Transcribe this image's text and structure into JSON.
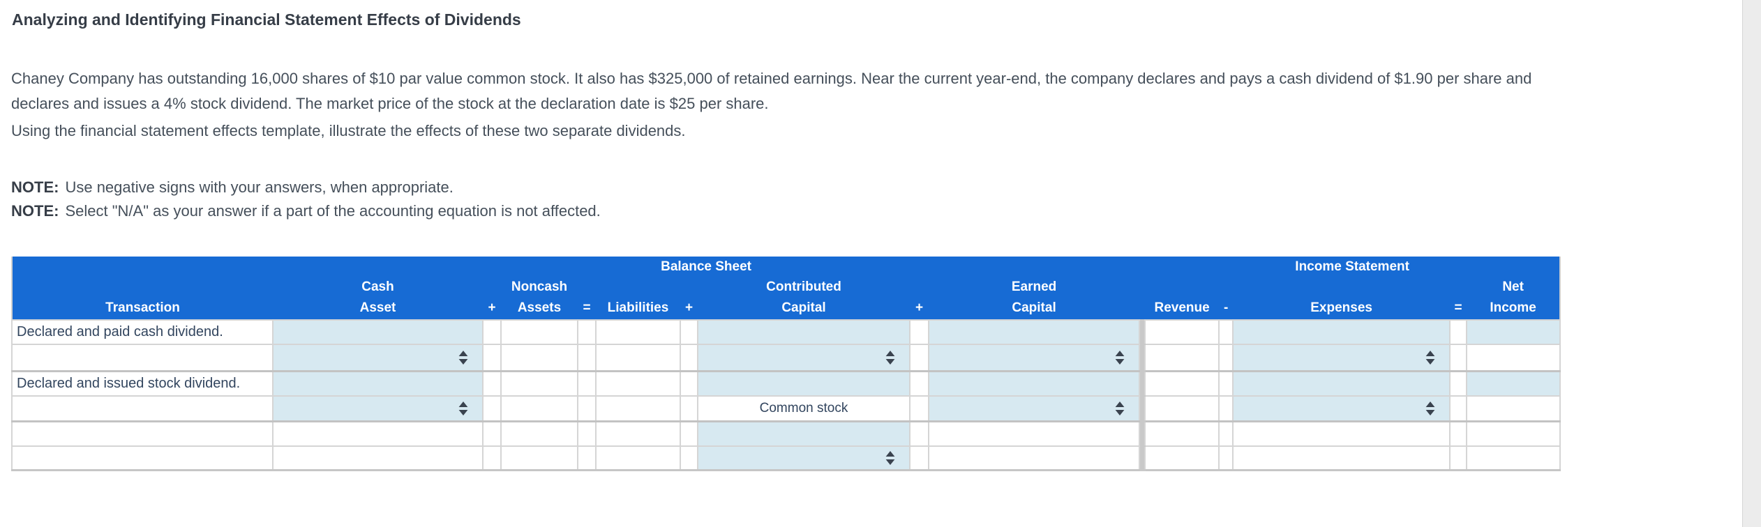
{
  "page": {
    "title": "Analyzing and Identifying Financial Statement Effects of Dividends",
    "intro_lines": [
      "Chaney Company has outstanding 16,000 shares of $10 par value common stock. It also has $325,000 of retained earnings. Near the current year-end, the company declares and pays a cash dividend of $1.90 per share and",
      "declares and issues a 4% stock dividend. The market price of the stock at the declaration date is $25 per share."
    ],
    "instruction": "Using the financial statement effects template, illustrate the effects of these two separate dividends.",
    "notes": [
      {
        "label": "NOTE:",
        "text": "Use negative signs with your answers, when appropriate."
      },
      {
        "label": "NOTE:",
        "text": "Select \"N/A\" as your answer if a part of the accounting equation is not affected."
      }
    ]
  },
  "table": {
    "group_headers": {
      "balance_sheet": "Balance Sheet",
      "income_statement": "Income Statement"
    },
    "columns": {
      "transaction": "Transaction",
      "cash_asset": [
        "Cash",
        "Asset"
      ],
      "op_plus_1": "+",
      "noncash_assets": [
        "Noncash",
        "Assets"
      ],
      "op_equals_1": "=",
      "liabilities": "Liabilities",
      "op_plus_2": "+",
      "contributed_capital": [
        "Contributed",
        "Capital"
      ],
      "op_plus_3": "+",
      "earned_capital": [
        "Earned",
        "Capital"
      ],
      "revenue": "Revenue",
      "op_minus": "-",
      "expenses": "Expenses",
      "op_equals_2": "=",
      "net_income": [
        "Net",
        "Income"
      ]
    },
    "colors": {
      "header_blue": "#176bd4",
      "input_cell_blue": "#d7e9f1",
      "divider_gray": "#c9c9c9"
    },
    "body": [
      {
        "transaction": "Declared and paid cash dividend.",
        "new_group": false,
        "cells": [
          {
            "type": "input"
          },
          {
            "type": "op"
          },
          {
            "type": "blank"
          },
          {
            "type": "op"
          },
          {
            "type": "blank"
          },
          {
            "type": "op"
          },
          {
            "type": "input"
          },
          {
            "type": "op"
          },
          {
            "type": "input"
          },
          {
            "type": "divider"
          },
          {
            "type": "blank"
          },
          {
            "type": "op"
          },
          {
            "type": "input"
          },
          {
            "type": "op"
          },
          {
            "type": "input"
          }
        ]
      },
      {
        "transaction": "",
        "new_group": false,
        "cells": [
          {
            "type": "dropdown"
          },
          {
            "type": "op"
          },
          {
            "type": "blank"
          },
          {
            "type": "op"
          },
          {
            "type": "blank"
          },
          {
            "type": "op"
          },
          {
            "type": "dropdown"
          },
          {
            "type": "op"
          },
          {
            "type": "dropdown"
          },
          {
            "type": "divider"
          },
          {
            "type": "blank"
          },
          {
            "type": "op"
          },
          {
            "type": "dropdown"
          },
          {
            "type": "op"
          },
          {
            "type": "blank"
          }
        ]
      },
      {
        "transaction": "Declared and issued stock dividend.",
        "new_group": true,
        "cells": [
          {
            "type": "input"
          },
          {
            "type": "op"
          },
          {
            "type": "blank"
          },
          {
            "type": "op"
          },
          {
            "type": "blank"
          },
          {
            "type": "op"
          },
          {
            "type": "input"
          },
          {
            "type": "op"
          },
          {
            "type": "input"
          },
          {
            "type": "divider"
          },
          {
            "type": "blank"
          },
          {
            "type": "op"
          },
          {
            "type": "input"
          },
          {
            "type": "op"
          },
          {
            "type": "input"
          }
        ]
      },
      {
        "transaction": "",
        "new_group": false,
        "cells": [
          {
            "type": "dropdown"
          },
          {
            "type": "op"
          },
          {
            "type": "blank"
          },
          {
            "type": "op"
          },
          {
            "type": "blank"
          },
          {
            "type": "op"
          },
          {
            "type": "value",
            "text": "Common stock"
          },
          {
            "type": "op"
          },
          {
            "type": "dropdown"
          },
          {
            "type": "divider"
          },
          {
            "type": "blank"
          },
          {
            "type": "op"
          },
          {
            "type": "dropdown"
          },
          {
            "type": "op"
          },
          {
            "type": "blank"
          }
        ]
      },
      {
        "transaction": "",
        "new_group": true,
        "cells": [
          {
            "type": "blank"
          },
          {
            "type": "op"
          },
          {
            "type": "blank"
          },
          {
            "type": "op"
          },
          {
            "type": "blank"
          },
          {
            "type": "op"
          },
          {
            "type": "input"
          },
          {
            "type": "op"
          },
          {
            "type": "blank"
          },
          {
            "type": "divider"
          },
          {
            "type": "blank"
          },
          {
            "type": "op"
          },
          {
            "type": "blank"
          },
          {
            "type": "op"
          },
          {
            "type": "blank"
          }
        ]
      },
      {
        "transaction": "",
        "new_group": false,
        "cells": [
          {
            "type": "blank"
          },
          {
            "type": "op"
          },
          {
            "type": "blank"
          },
          {
            "type": "op"
          },
          {
            "type": "blank"
          },
          {
            "type": "op"
          },
          {
            "type": "dropdown"
          },
          {
            "type": "op"
          },
          {
            "type": "blank"
          },
          {
            "type": "divider"
          },
          {
            "type": "blank"
          },
          {
            "type": "op"
          },
          {
            "type": "blank"
          },
          {
            "type": "op"
          },
          {
            "type": "blank"
          }
        ]
      }
    ]
  }
}
